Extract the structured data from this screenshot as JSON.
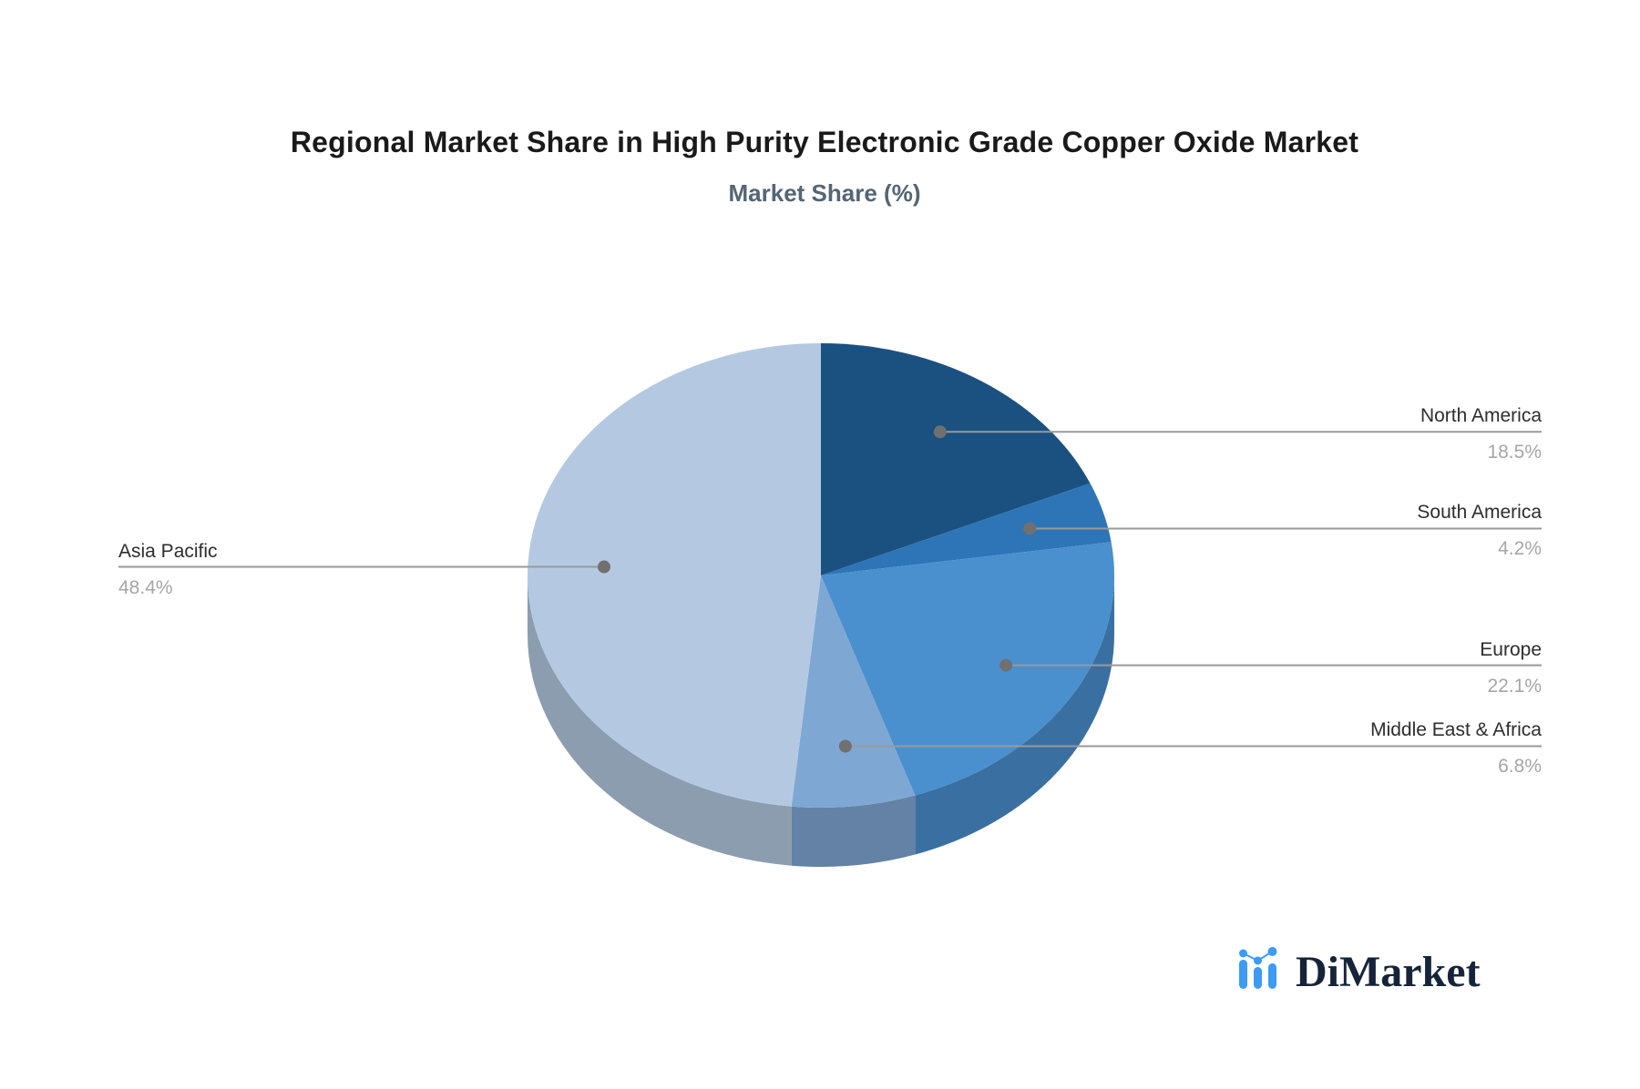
{
  "title": "Regional Market Share in High Purity Electronic Grade Copper Oxide Market",
  "subtitle": "Market Share (%)",
  "chart_data": {
    "type": "pie",
    "style": "3d",
    "title": "Regional Market Share in High Purity Electronic Grade Copper Oxide Market",
    "subtitle": "Market Share (%)",
    "unit": "%",
    "start_angle_deg": 0,
    "direction": "clockwise",
    "legend_position": "none",
    "slices": [
      {
        "label": "North America",
        "value": 18.5,
        "display": "18.5%",
        "color": "#1b5181",
        "label_side": "right"
      },
      {
        "label": "South America",
        "value": 4.2,
        "display": "4.2%",
        "color": "#2d75b6",
        "label_side": "right"
      },
      {
        "label": "Europe",
        "value": 22.1,
        "display": "22.1%",
        "color": "#4a8fce",
        "label_side": "right"
      },
      {
        "label": "Middle East & Africa",
        "value": 6.8,
        "display": "6.8%",
        "color": "#7fa7d3",
        "label_side": "right"
      },
      {
        "label": "Asia Pacific",
        "value": 48.4,
        "display": "48.4%",
        "color": "#b4c9e1",
        "label_side": "left"
      }
    ]
  },
  "brand": {
    "name": "DiMarket",
    "icon": "bar-line-chart-logo",
    "icon_color": "#3d9bf5",
    "text_color": "#16243a"
  },
  "colors": {
    "background": "#ffffff",
    "leader_line": "#999999",
    "leader_dot": "#707070",
    "label_text": "#2d2d2d",
    "label_value": "#a6a6a6",
    "title_text": "#1a1a1a",
    "subtitle_text": "#556575"
  }
}
